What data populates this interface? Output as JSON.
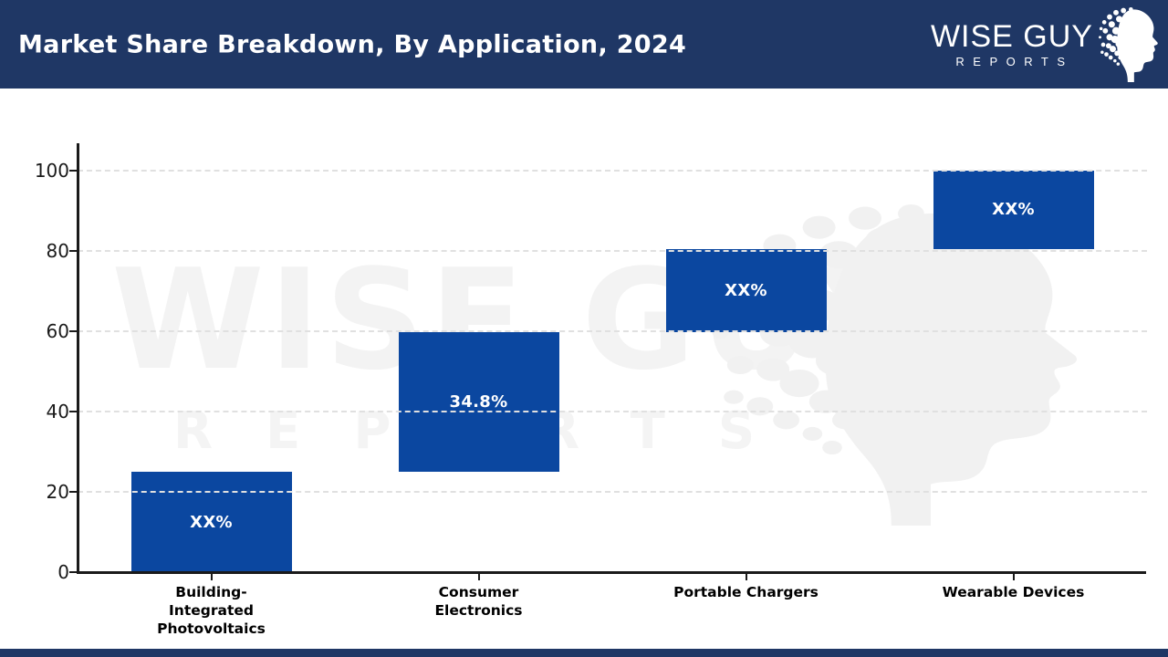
{
  "header": {
    "title": "Market Share Breakdown, By Application, 2024",
    "logo": {
      "name": "WISE GUY",
      "sub": "REPORTS"
    }
  },
  "watermark": {
    "name": "WISE GUY",
    "sub": "REPORTS"
  },
  "colors": {
    "header_bg": "#1f3765",
    "footer_bg": "#1f3765",
    "bar": "#0b47a0",
    "bar_label": "#ffffff",
    "axis": "#1a1a1a",
    "grid": "#e0e0e0",
    "watermark": "#f2f2f2"
  },
  "chart_data": {
    "type": "bar",
    "subtype": "waterfall",
    "title": "Market Share Breakdown, By Application, 2024",
    "categories": [
      "Building-Integrated Photovoltaics",
      "Consumer Electronics",
      "Portable Chargers",
      "Wearable Devices"
    ],
    "category_lines": [
      [
        "Building-",
        "Integrated",
        "Photovoltaics"
      ],
      [
        "Consumer",
        "Electronics"
      ],
      [
        "Portable Chargers"
      ],
      [
        "Wearable Devices"
      ]
    ],
    "bars": [
      {
        "category": "Building-Integrated Photovoltaics",
        "start": 0,
        "end": 25,
        "label": "XX%"
      },
      {
        "category": "Consumer Electronics",
        "start": 25,
        "end": 59.8,
        "label": "34.8%"
      },
      {
        "category": "Portable Chargers",
        "start": 59.8,
        "end": 80.5,
        "label": "XX%"
      },
      {
        "category": "Wearable Devices",
        "start": 80.5,
        "end": 100,
        "label": "XX%"
      }
    ],
    "xlabel": "",
    "ylabel": "",
    "yticks": [
      0,
      20,
      40,
      60,
      80,
      100
    ],
    "ylim": [
      0,
      107
    ],
    "grid": "horizontal-dashed, drawn above bars",
    "legend": null
  }
}
